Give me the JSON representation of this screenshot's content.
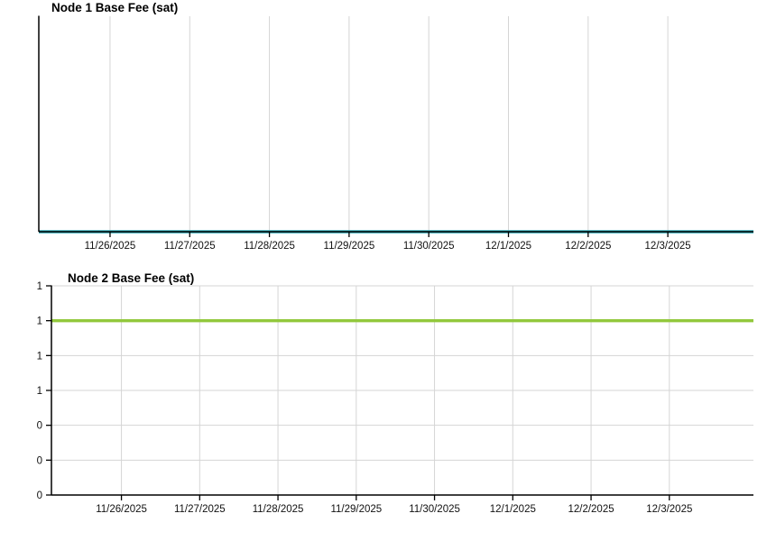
{
  "page": {
    "background": "#ffffff"
  },
  "style": {
    "grid_color": "#d5d5d5",
    "axis_color": "#000000",
    "tick_label_color": "#111111",
    "title_color": "#000000"
  },
  "chart_data": [
    {
      "type": "line",
      "title": "Node 1 Base Fee (sat)",
      "xlabel": "",
      "ylabel": "",
      "x_tick_labels": [
        "11/26/2025",
        "11/27/2025",
        "11/28/2025",
        "11/29/2025",
        "11/30/2025",
        "12/1/2025",
        "12/2/2025",
        "12/3/2025"
      ],
      "y_tick_values": [],
      "y_tick_labels": [],
      "ylim": [
        0,
        1
      ],
      "grid": "vertical-only",
      "legend": "none",
      "series": [
        {
          "name": "Node 1 Base Fee",
          "shape": "constant-horizontal-line",
          "value": 0,
          "values": [
            0,
            0,
            0,
            0,
            0,
            0,
            0,
            0
          ],
          "color": "#2aa6b4"
        }
      ]
    },
    {
      "type": "line",
      "title": "Node 2 Base Fee (sat)",
      "xlabel": "",
      "ylabel": "",
      "x_tick_labels": [
        "11/26/2025",
        "11/27/2025",
        "11/28/2025",
        "11/29/2025",
        "11/30/2025",
        "12/1/2025",
        "12/2/2025",
        "12/3/2025"
      ],
      "y_tick_values": [
        1.2,
        1.0,
        0.8,
        0.6,
        0.4,
        0.2,
        0.0
      ],
      "y_tick_labels": [
        "1",
        "1",
        "1",
        "1",
        "0",
        "0",
        "0"
      ],
      "ylim": [
        0,
        1.2
      ],
      "grid": "both",
      "legend": "none",
      "series": [
        {
          "name": "Node 2 Base Fee",
          "shape": "constant-horizontal-line",
          "value": 1,
          "values": [
            1,
            1,
            1,
            1,
            1,
            1,
            1,
            1
          ],
          "color": "#92c83c"
        }
      ]
    }
  ]
}
